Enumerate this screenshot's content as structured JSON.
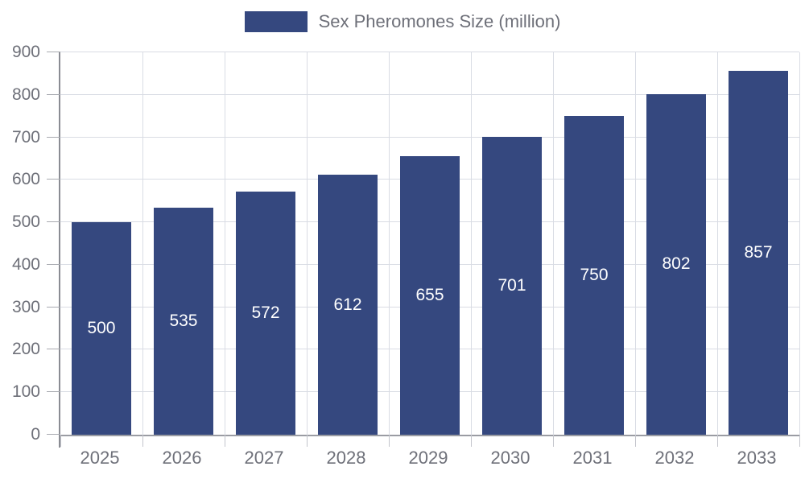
{
  "chart_data": {
    "type": "bar",
    "title": "",
    "legend_label": "Sex Pheromones Size (million)",
    "legend_position": "top-center",
    "categories": [
      "2025",
      "2026",
      "2027",
      "2028",
      "2029",
      "2030",
      "2031",
      "2032",
      "2033"
    ],
    "series": [
      {
        "name": "Sex Pheromones Size (million)",
        "values": [
          500,
          535,
          572,
          612,
          655,
          701,
          750,
          802,
          857
        ]
      }
    ],
    "value_labels": {
      "visible": true,
      "position": "inside-center",
      "color": "#ffffff"
    },
    "xlabel": "",
    "ylabel": "",
    "ylim": [
      0,
      900
    ],
    "ytick_step": 100,
    "yticks": [
      0,
      100,
      200,
      300,
      400,
      500,
      600,
      700,
      800,
      900
    ],
    "grid": true,
    "colors": {
      "bar": "#35487f",
      "axis_text": "#6e7079",
      "legend_text": "#6e7079",
      "gridline": "#d9dce4",
      "axis_line": "#8a8c93",
      "background": "#ffffff"
    }
  }
}
